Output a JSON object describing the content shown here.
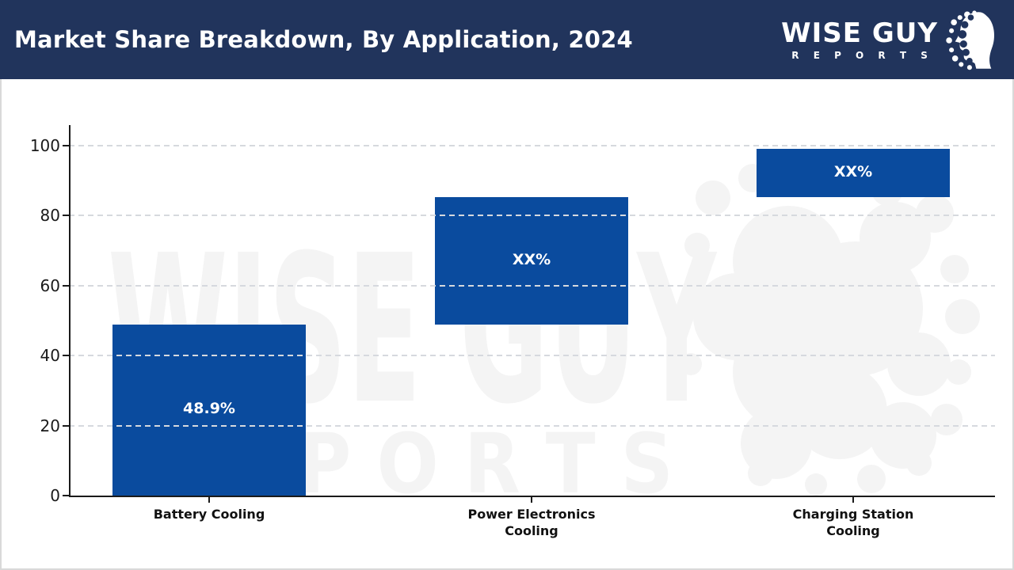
{
  "header": {
    "title": "Market Share Breakdown, By Application, 2024",
    "logo": {
      "line1": "WISE GUY",
      "line2": "R E P O R T S"
    }
  },
  "watermark": {
    "line1": "WISE GUY",
    "line2": "R E P O R T S"
  },
  "chart_data": {
    "type": "bar",
    "subtype": "waterfall",
    "title": "Market Share Breakdown, By Application, 2024",
    "categories": [
      "Battery Cooling",
      "Power Electronics Cooling",
      "Charging Station Cooling"
    ],
    "category_lines": [
      [
        "Battery Cooling"
      ],
      [
        "Power Electronics",
        "Cooling"
      ],
      [
        "Charging Station",
        "Cooling"
      ]
    ],
    "segments": [
      {
        "category": "Battery Cooling",
        "start": 0,
        "end": 48.9,
        "label": "48.9%"
      },
      {
        "category": "Power Electronics Cooling",
        "start": 48.9,
        "end": 85.2,
        "label": "XX%"
      },
      {
        "category": "Charging Station Cooling",
        "start": 85.2,
        "end": 99.1,
        "label": "XX%"
      }
    ],
    "yticks": [
      0,
      20,
      40,
      60,
      80,
      100
    ],
    "ylim": [
      0,
      100
    ],
    "xlabel": "",
    "ylabel": "",
    "grid": "horizontal-dashed",
    "legend": "none"
  },
  "colors": {
    "header_bg": "#21345c",
    "title_text": "#ffffff",
    "bar": "#0a4b9e",
    "bar_label": "#ffffff",
    "grid": "#d6d9de",
    "axis": "#1a1a1a",
    "tick_label": "#1a1a1a",
    "category_label": "#111111",
    "watermark": "#f4f4f4",
    "frame": "#d9d9d9"
  }
}
